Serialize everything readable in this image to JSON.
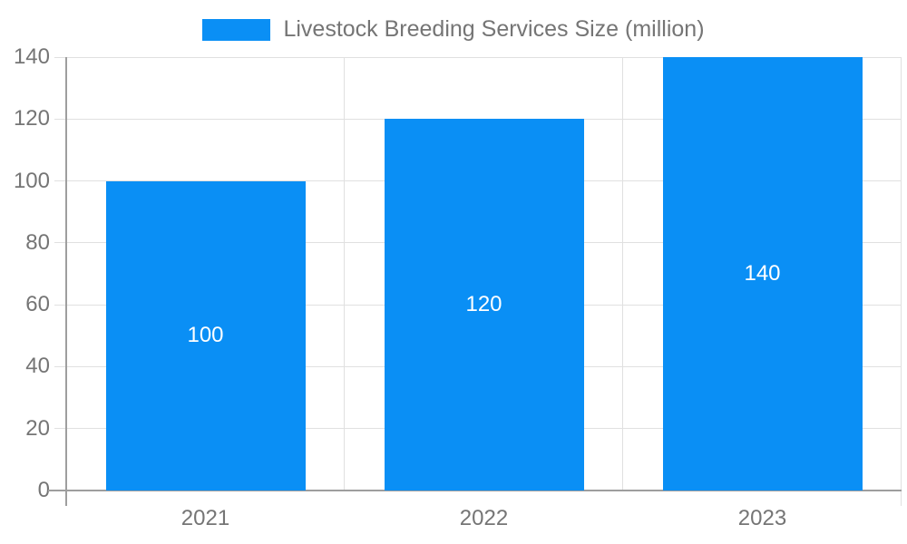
{
  "chart_data": {
    "type": "bar",
    "title": "Livestock Breeding Services Size (million)",
    "categories": [
      "2021",
      "2022",
      "2023"
    ],
    "values": [
      100,
      120,
      140
    ],
    "value_labels": [
      "100",
      "120",
      "140"
    ],
    "xlabel": "",
    "ylabel": "",
    "ylim": [
      0,
      140
    ],
    "yticks": [
      0,
      20,
      40,
      60,
      80,
      100,
      120,
      140
    ],
    "grid": true,
    "legend_position": "top",
    "legend_label": "Livestock Breeding Services Size (million)",
    "colors": {
      "bar": "#0a8ff5",
      "grid": "#e0e0e0",
      "axis": "#9e9e9e",
      "tick_label": "#757575",
      "value_label": "#ffffff",
      "background": "#ffffff"
    }
  }
}
